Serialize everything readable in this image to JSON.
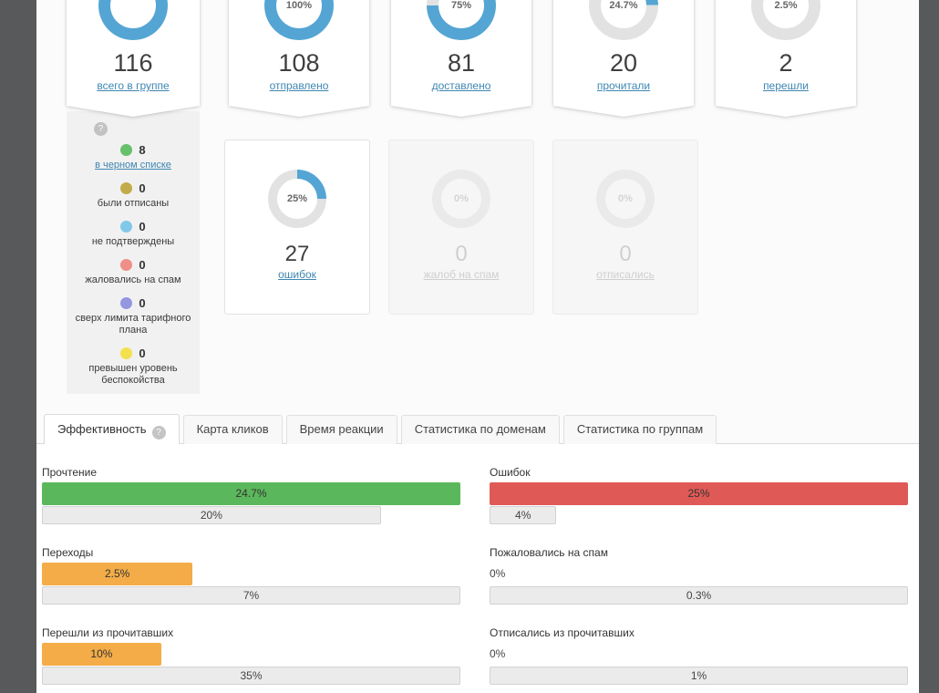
{
  "colors": {
    "accent_blue": "#54a5d3",
    "ring_rest": "#e2e2e2",
    "ring_rest_muted": "#eaeaea",
    "green": "#5bb75b",
    "orange": "#f3ac47",
    "red": "#df5a56",
    "link": "#3e86b2",
    "sidebar": "#58595b"
  },
  "summary_cards": [
    {
      "value": "116",
      "label": "всего в группе",
      "percent_label": "",
      "donut": {
        "percent": 93,
        "color": "accent_blue"
      }
    },
    {
      "value": "108",
      "label": "отправлено",
      "percent_label": "100%",
      "donut": {
        "percent": 100,
        "color": "accent_blue"
      }
    },
    {
      "value": "81",
      "label": "доставлено",
      "percent_label": "75%",
      "donut": {
        "percent": 75,
        "color": "accent_blue"
      }
    },
    {
      "value": "20",
      "label": "прочитали",
      "percent_label": "24.7%",
      "donut": {
        "percent": 24.7,
        "color": "accent_blue"
      }
    },
    {
      "value": "2",
      "label": "перешли",
      "percent_label": "2.5%",
      "donut": {
        "percent": 2.5,
        "color": "accent_blue"
      }
    }
  ],
  "group_stats": {
    "help_icon": "?",
    "items": [
      {
        "dot_color": "#67c06a",
        "value": "8",
        "label": "в черном списке"
      },
      {
        "dot_color": "#c2ab4a",
        "value": "0",
        "label": "были отписаны"
      },
      {
        "dot_color": "#82c8e8",
        "value": "0",
        "label": "не подтверждены"
      },
      {
        "dot_color": "#ef8f88",
        "value": "0",
        "label": "жаловались на спам"
      },
      {
        "dot_color": "#9596e0",
        "value": "0",
        "label": "сверх лимита тарифного плана"
      },
      {
        "dot_color": "#f3e04e",
        "value": "0",
        "label": "превышен уровень беспокойства"
      }
    ]
  },
  "detail_cards": [
    {
      "value": "27",
      "label": "ошибок",
      "percent_label": "25%",
      "donut": {
        "percent": 25,
        "color": "accent_blue"
      }
    },
    {
      "value": "0",
      "label": "жалоб на спам",
      "percent_label": "0%",
      "donut": {
        "percent": 0,
        "color": "ring_rest_muted",
        "rest": "ring_rest_muted"
      }
    },
    {
      "value": "0",
      "label": "отписались",
      "percent_label": "0%",
      "donut": {
        "percent": 0,
        "color": "ring_rest_muted",
        "rest": "ring_rest_muted"
      }
    }
  ],
  "tabs": [
    {
      "label": "Эффективность",
      "help": "?"
    },
    {
      "label": "Карта кликов"
    },
    {
      "label": "Время реакции"
    },
    {
      "label": "Статистика по доменам"
    },
    {
      "label": "Статистика по группам"
    }
  ],
  "chart_data": {
    "type": "bar",
    "title": "Эффективность",
    "note": "colored bar = campaign value, gray bar = comparison average",
    "rows": [
      {
        "label": "Прочтение",
        "value": 24.7,
        "avg": 20
      },
      {
        "label": "Переходы",
        "value": 2.5,
        "avg": 7
      },
      {
        "label": "Перешли из прочитавших",
        "value": 10,
        "avg": 35
      },
      {
        "label": "Ошибок",
        "value": 25,
        "avg": 4
      },
      {
        "label": "Пожаловались на спам",
        "value": 0,
        "avg": 0.3
      },
      {
        "label": "Отписались из прочитавших",
        "value": 0,
        "avg": 1
      }
    ]
  },
  "effectiveness": {
    "left": [
      {
        "label": "Прочтение",
        "value_label": "24.7%",
        "value_width": "100%",
        "bar_color": "#5bb75b",
        "avg_label": "20%",
        "avg_width": "81%"
      },
      {
        "label": "Переходы",
        "value_label": "2.5%",
        "value_width": "36%",
        "bar_color": "#f3ac47",
        "avg_label": "7%",
        "avg_width": "100%"
      },
      {
        "label": "Перешли из прочитавших",
        "value_label": "10%",
        "value_width": "28.5%",
        "bar_color": "#f3ac47",
        "avg_label": "35%",
        "avg_width": "100%"
      }
    ],
    "right": [
      {
        "label": "Ошибок",
        "value_label": "25%",
        "value_width": "100%",
        "bar_color": "#df5a56",
        "avg_label": "4%",
        "avg_width": "16%"
      },
      {
        "label": "Пожаловались на спам",
        "value_label": "0%",
        "value_width": "0%",
        "bar_color": "none",
        "avg_label": "0.3%",
        "avg_width": "100%"
      },
      {
        "label": "Отписались из прочитавших",
        "value_label": "0%",
        "value_width": "0%",
        "bar_color": "none",
        "avg_label": "1%",
        "avg_width": "100%"
      }
    ]
  }
}
